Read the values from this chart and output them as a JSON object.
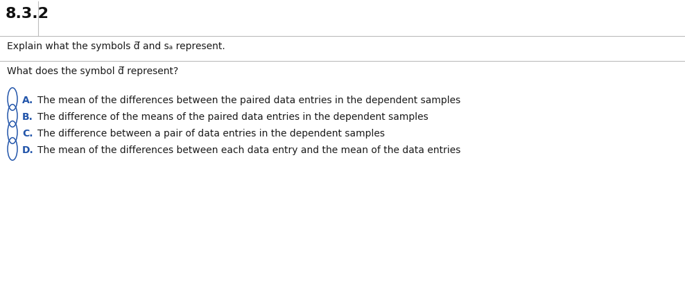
{
  "section_number": "8.3.2",
  "section_number_fontsize": 16,
  "subtitle": "Explain what the symbols d̅ and sₐ represent.",
  "subtitle_fontsize": 10,
  "question": "What does the symbol d̅ represent?",
  "question_fontsize": 10,
  "options": [
    {
      "label": "A.",
      "text": "The mean of the differences between the paired data entries in the dependent samples"
    },
    {
      "label": "B.",
      "text": "The difference of the means of the paired data entries in the dependent samples"
    },
    {
      "label": "C.",
      "text": "The difference between a pair of data entries in the dependent samples"
    },
    {
      "label": "D.",
      "text": "The mean of the differences between each data entry and the mean of the data entries"
    }
  ],
  "option_fontsize": 10,
  "label_color": "#2255AA",
  "text_color": "#1a1a1a",
  "bg_color": "#ffffff",
  "circle_color": "#2255AA",
  "section_color": "#111111",
  "line_color": "#bbbbbb",
  "fig_width": 9.88,
  "fig_height": 4.23,
  "dpi": 100
}
